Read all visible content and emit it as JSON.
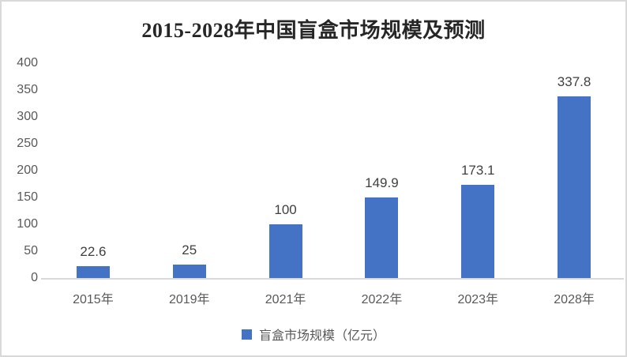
{
  "chart_data": {
    "type": "bar",
    "title": "2015-2028年中国盲盒市场规模及预测",
    "categories": [
      "2015年",
      "2019年",
      "2021年",
      "2022年",
      "2023年",
      "2028年"
    ],
    "values": [
      22.6,
      25,
      100,
      149.9,
      173.1,
      337.8
    ],
    "value_labels": [
      "22.6",
      "25",
      "100",
      "149.9",
      "173.1",
      "337.8"
    ],
    "series_name": "盲盒市场规模（亿元）",
    "legend": [
      "盲盒市场规模（亿元）"
    ],
    "legend_position": "bottom",
    "xlabel": "",
    "ylabel": "",
    "ylim": [
      0,
      400
    ],
    "yticks": [
      0,
      50,
      100,
      150,
      200,
      250,
      300,
      350,
      400
    ],
    "grid": false,
    "colors": {
      "bar": "#4472C4",
      "axis_text": "#595959",
      "value_text": "#404040",
      "title_text": "#262626",
      "axis_line": "#D9D9D9",
      "border": "#D9D9D9"
    }
  }
}
